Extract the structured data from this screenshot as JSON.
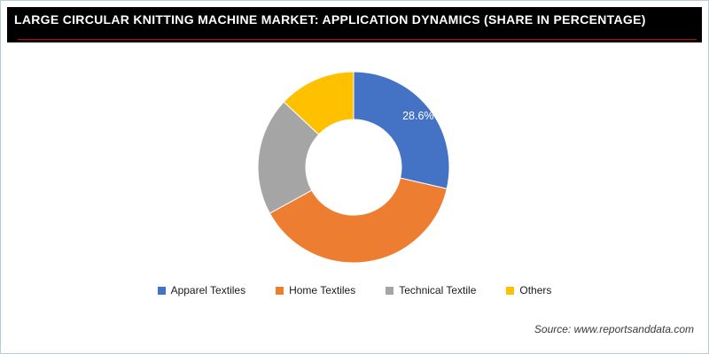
{
  "title": "LARGE CIRCULAR KNITTING MACHINE MARKET: APPLICATION DYNAMICS (SHARE IN PERCENTAGE)",
  "source": "Source: www.reportsanddata.com",
  "chart_data": {
    "type": "pie",
    "subtype": "donut",
    "title": "LARGE CIRCULAR KNITTING MACHINE MARKET: APPLICATION DYNAMICS (SHARE IN PERCENTAGE)",
    "categories": [
      "Apparel Textiles",
      "Home Textiles",
      "Technical Textile",
      "Others"
    ],
    "values": [
      28.6,
      38.4,
      20.0,
      13.0
    ],
    "value_labels": [
      "28.6%",
      null,
      null,
      null
    ],
    "colors": [
      "#4472C4",
      "#ED7D31",
      "#A5A5A5",
      "#FFC000"
    ],
    "start_angle_deg": -90,
    "direction": "clockwise",
    "legend_position": "bottom"
  },
  "theme": {
    "title_bg": "#000000",
    "title_color": "#FFFFFF",
    "accent_line": "#D40000",
    "frame_border": "#B7C9DC",
    "label_color": "#FFFFFF"
  }
}
